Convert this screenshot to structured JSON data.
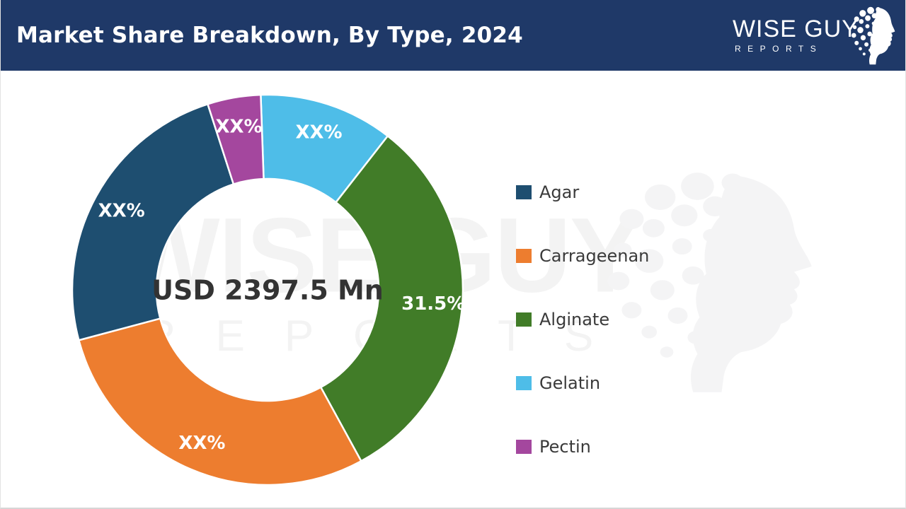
{
  "header": {
    "title": "Market Share Breakdown, By Type, 2024",
    "bg_color": "#1f3968",
    "logo": {
      "name": "WISE GUY",
      "tagline": "REPORTS"
    }
  },
  "watermark": {
    "line1": "WISE GUY",
    "line2": "REPORTS"
  },
  "chart_data": {
    "type": "pie",
    "subtype": "donut",
    "title": "Market Share Breakdown, By Type, 2024",
    "center_label": "USD 2397.5 Mn",
    "center_label_color": "#333333",
    "start_angle_deg": -2,
    "direction": "clockwise",
    "slices": [
      {
        "name": "Gelatin",
        "display_label": "XX%",
        "pct_est": 11.1,
        "color": "#4ebde8"
      },
      {
        "name": "Alginate",
        "display_label": "31.5%",
        "pct_est": 31.5,
        "color": "#417c28"
      },
      {
        "name": "Carrageenan",
        "display_label": "XX%",
        "pct_est": 28.8,
        "color": "#ed7d2f"
      },
      {
        "name": "Agar",
        "display_label": "XX%",
        "pct_est": 24.2,
        "color": "#1e4e70"
      },
      {
        "name": "Pectin",
        "display_label": "XX%",
        "pct_est": 4.4,
        "color": "#a4479e"
      }
    ],
    "legend_order": [
      "Agar",
      "Carrageenan",
      "Alginate",
      "Gelatin",
      "Pectin"
    ],
    "legend_position": "right",
    "legend_text_color": "#3a3a3a"
  }
}
